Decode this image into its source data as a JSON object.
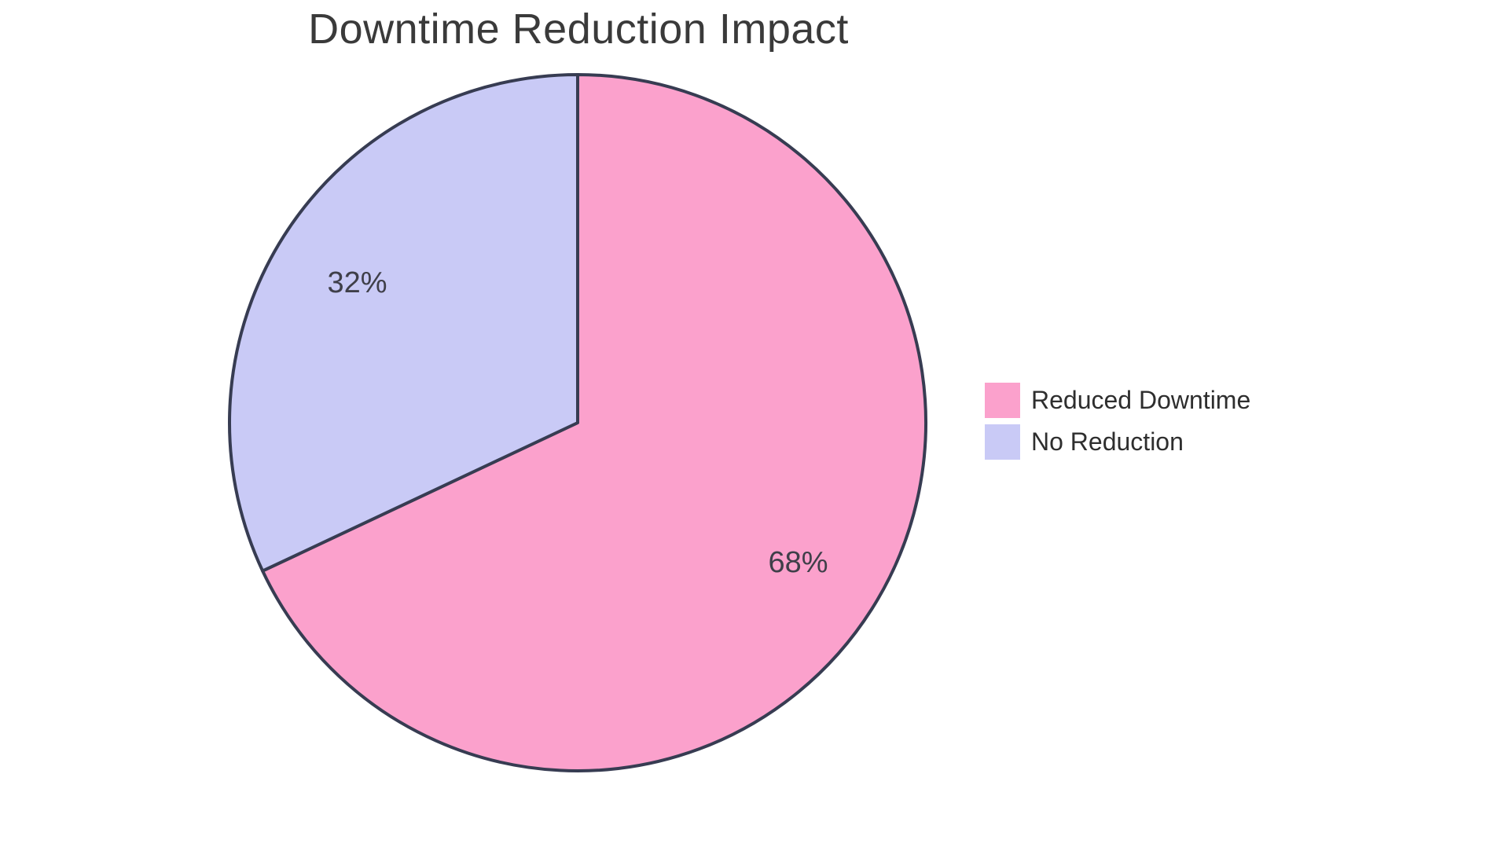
{
  "chart_data": {
    "type": "pie",
    "title": "Downtime Reduction Impact",
    "labels": [
      "Reduced Downtime",
      "No Reduction"
    ],
    "values": [
      68,
      32
    ],
    "display_labels": [
      "68%",
      "32%"
    ],
    "colors": [
      "#FBA1CC",
      "#C9CAF6"
    ],
    "slice_border_color": "#373C52",
    "slice_border_width": 4,
    "start_angle": "top",
    "direction": "clockwise",
    "legend_position": "right",
    "label_color": "#3f3f49",
    "title_color": "#3a3a3a"
  },
  "legend": {
    "items": [
      {
        "label": "Reduced Downtime",
        "color": "#FBA1CC"
      },
      {
        "label": "No Reduction",
        "color": "#C9CAF6"
      }
    ]
  }
}
